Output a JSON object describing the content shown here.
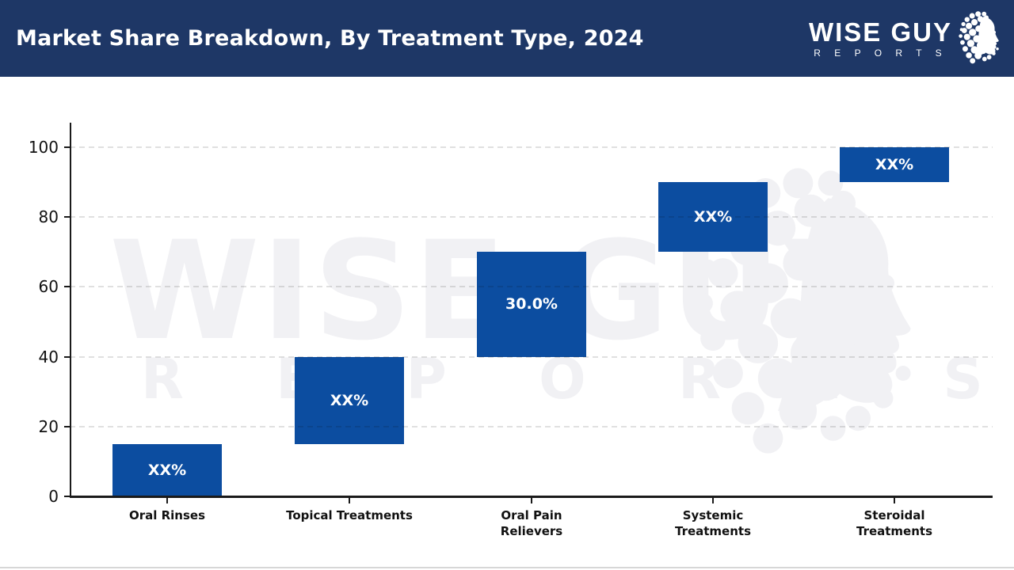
{
  "header": {
    "title": "Market Share Breakdown, By Treatment Type, 2024",
    "logo": {
      "line1": "WISE GUY",
      "line2": "R E P O R T S"
    }
  },
  "watermark": {
    "line1": "WISE GUY",
    "line2": "R E P O R T S"
  },
  "theme": {
    "header_bg": "#1e3766",
    "bar_color": "#0c4da0",
    "bar_label_color": "#ffffff",
    "watermark_color": "#f1f1f4",
    "gridline_color": "rgba(0,0,0,0.12)",
    "axis_color": "#1a1a1a"
  },
  "chart_data": {
    "type": "bar",
    "subtype": "waterfall",
    "title": "Market Share Breakdown, By Treatment Type, 2024",
    "categories": [
      "Oral Rinses",
      "Topical Treatments",
      "Oral Pain Relievers",
      "Systemic Treatments",
      "Steroidal Treatments"
    ],
    "x_label_lines": [
      "Oral Rinses",
      "Topical Treatments",
      "Oral Pain\nRelievers",
      "Systemic\nTreatments",
      "Steroidal\nTreatments"
    ],
    "segments": [
      {
        "category": "Oral Rinses",
        "start": 0,
        "end": 15,
        "value_label": "XX%"
      },
      {
        "category": "Topical Treatments",
        "start": 15,
        "end": 40,
        "value_label": "XX%"
      },
      {
        "category": "Oral Pain Relievers",
        "start": 40,
        "end": 70,
        "value_label": "30.0%"
      },
      {
        "category": "Systemic Treatments",
        "start": 70,
        "end": 90,
        "value_label": "XX%"
      },
      {
        "category": "Steroidal Treatments",
        "start": 90,
        "end": 100,
        "value_label": "XX%"
      }
    ],
    "yticks": [
      0,
      20,
      40,
      60,
      80,
      100
    ],
    "ylim": [
      0,
      105
    ],
    "xlabel": "",
    "ylabel": "",
    "grid": "dashed-horizontal-over-bars",
    "legend": "none"
  }
}
